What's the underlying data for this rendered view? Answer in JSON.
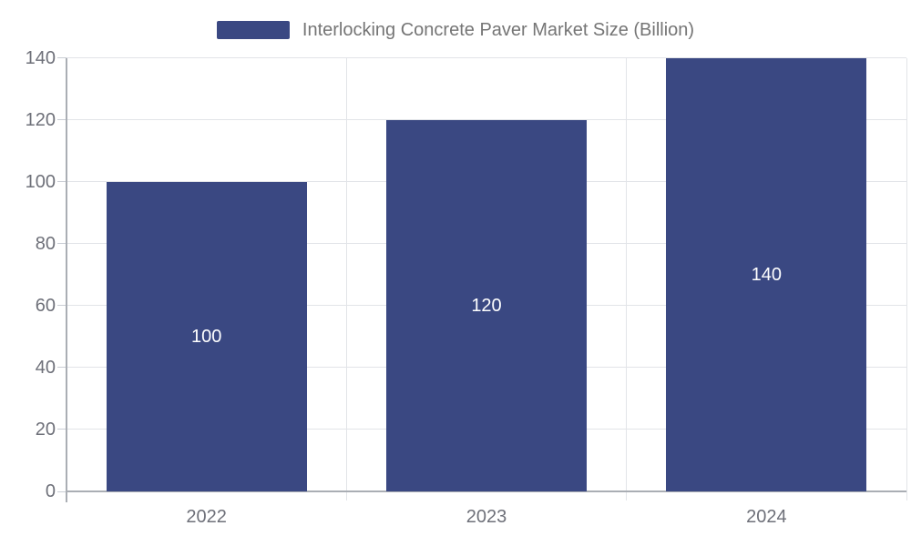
{
  "chart_data": {
    "type": "bar",
    "title": "Interlocking Concrete Paver Market Size (Billion)",
    "legend": {
      "position": "top",
      "entries": [
        "Interlocking Concrete Paver Market Size (Billion)"
      ]
    },
    "categories": [
      "2022",
      "2023",
      "2024"
    ],
    "values": [
      100,
      120,
      140
    ],
    "bar_value_labels": [
      "100",
      "120",
      "140"
    ],
    "xlabel": "",
    "ylabel": "",
    "ylim": [
      0,
      140
    ],
    "yticks": [
      0,
      20,
      40,
      60,
      80,
      100,
      120,
      140
    ],
    "grid": true,
    "colors": {
      "bar": "#3A4882",
      "value_label": "#FFFFFF",
      "axis_text": "#6E7079",
      "legend_text": "#757575",
      "gridline": "#E2E4E8",
      "axis_line": "#AAAEB4",
      "tick_line": "#C9CDD4",
      "background": "#FFFFFF"
    }
  }
}
